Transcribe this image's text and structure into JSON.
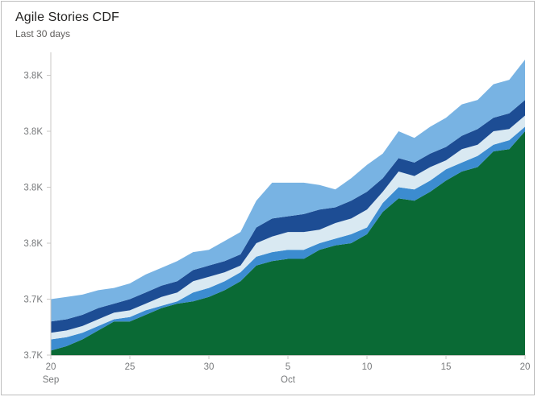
{
  "card": {
    "title": "Agile Stories CDF",
    "subtitle": "Last 30 days"
  },
  "palette": {
    "dark_green": "#0a6a35",
    "medium_blue": "#3c8cd0",
    "pale_blue": "#d9e9f2",
    "navy_blue": "#1d4d94",
    "sky_blue": "#78b3e3",
    "title_text": "#252423",
    "subtitle_text": "#605e5c",
    "axis_text": "#77797b",
    "axis_line": "#c9c7c5",
    "card_border": "#bdbdbd"
  },
  "chart_data": {
    "type": "area",
    "stacked": true,
    "title": "Agile Stories CDF",
    "subtitle": "Last 30 days",
    "xlabel": "",
    "ylabel": "",
    "grid": false,
    "legend": "none",
    "ylim": [
      3700,
      3835
    ],
    "yticks": [
      {
        "value": 3700,
        "label": "3.7K"
      },
      {
        "value": 3725,
        "label": "3.7K"
      },
      {
        "value": 3750,
        "label": "3.8K"
      },
      {
        "value": 3775,
        "label": "3.8K"
      },
      {
        "value": 3800,
        "label": "3.8K"
      },
      {
        "value": 3825,
        "label": "3.8K"
      }
    ],
    "xticks": [
      {
        "pos": 0,
        "label": "20",
        "month": "Sep"
      },
      {
        "pos": 5,
        "label": "25",
        "month": ""
      },
      {
        "pos": 10,
        "label": "30",
        "month": ""
      },
      {
        "pos": 15,
        "label": "5",
        "month": "Oct"
      },
      {
        "pos": 20,
        "label": "10",
        "month": ""
      },
      {
        "pos": 25,
        "label": "15",
        "month": ""
      },
      {
        "pos": 30,
        "label": "20",
        "month": ""
      }
    ],
    "dates": [
      "Sep 20",
      "Sep 21",
      "Sep 22",
      "Sep 23",
      "Sep 24",
      "Sep 25",
      "Sep 26",
      "Sep 27",
      "Sep 28",
      "Sep 29",
      "Sep 30",
      "Oct 1",
      "Oct 2",
      "Oct 3",
      "Oct 4",
      "Oct 5",
      "Oct 6",
      "Oct 7",
      "Oct 8",
      "Oct 9",
      "Oct 10",
      "Oct 11",
      "Oct 12",
      "Oct 13",
      "Oct 14",
      "Oct 15",
      "Oct 16",
      "Oct 17",
      "Oct 18",
      "Oct 19",
      "Oct 20"
    ],
    "series": [
      {
        "name": "dark-green",
        "color": "#0a6a35",
        "values_cumulative": [
          3702,
          3704,
          3707,
          3711,
          3715,
          3715,
          3718,
          3721,
          3723,
          3724,
          3726,
          3729,
          3733,
          3740,
          3742,
          3743,
          3743,
          3747,
          3749,
          3750,
          3754,
          3764,
          3770,
          3769,
          3773,
          3778,
          3782,
          3784,
          3791,
          3792,
          3800
        ]
      },
      {
        "name": "medium-blue",
        "color": "#3c8cd0",
        "values_cumulative": [
          3707,
          3708,
          3710,
          3713,
          3716,
          3717,
          3720,
          3722,
          3724,
          3728,
          3730,
          3733,
          3737,
          3744,
          3746,
          3747,
          3747,
          3750,
          3752,
          3754,
          3757,
          3768,
          3775,
          3774,
          3778,
          3783,
          3786,
          3789,
          3794,
          3796,
          3802
        ]
      },
      {
        "name": "pale-blue",
        "color": "#d9e9f2",
        "values_cumulative": [
          3710,
          3711,
          3713,
          3716,
          3719,
          3720,
          3723,
          3726,
          3728,
          3733,
          3735,
          3737,
          3740,
          3750,
          3753,
          3755,
          3755,
          3756,
          3759,
          3761,
          3765,
          3773,
          3782,
          3780,
          3784,
          3787,
          3792,
          3794,
          3800,
          3801,
          3807
        ]
      },
      {
        "name": "navy-blue",
        "color": "#1d4d94",
        "values_cumulative": [
          3715,
          3716,
          3718,
          3721,
          3723,
          3725,
          3728,
          3731,
          3733,
          3738,
          3740,
          3742,
          3745,
          3757,
          3761,
          3762,
          3763,
          3765,
          3766,
          3769,
          3773,
          3779,
          3788,
          3786,
          3790,
          3793,
          3798,
          3801,
          3806,
          3808,
          3814
        ]
      },
      {
        "name": "sky-blue",
        "color": "#78b3e3",
        "values_cumulative": [
          3725,
          3726,
          3727,
          3729,
          3730,
          3732,
          3736,
          3739,
          3742,
          3746,
          3747,
          3751,
          3755,
          3769,
          3777,
          3777,
          3777,
          3776,
          3774,
          3779,
          3785,
          3790,
          3800,
          3797,
          3802,
          3806,
          3812,
          3814,
          3821,
          3823,
          3832
        ]
      }
    ]
  }
}
